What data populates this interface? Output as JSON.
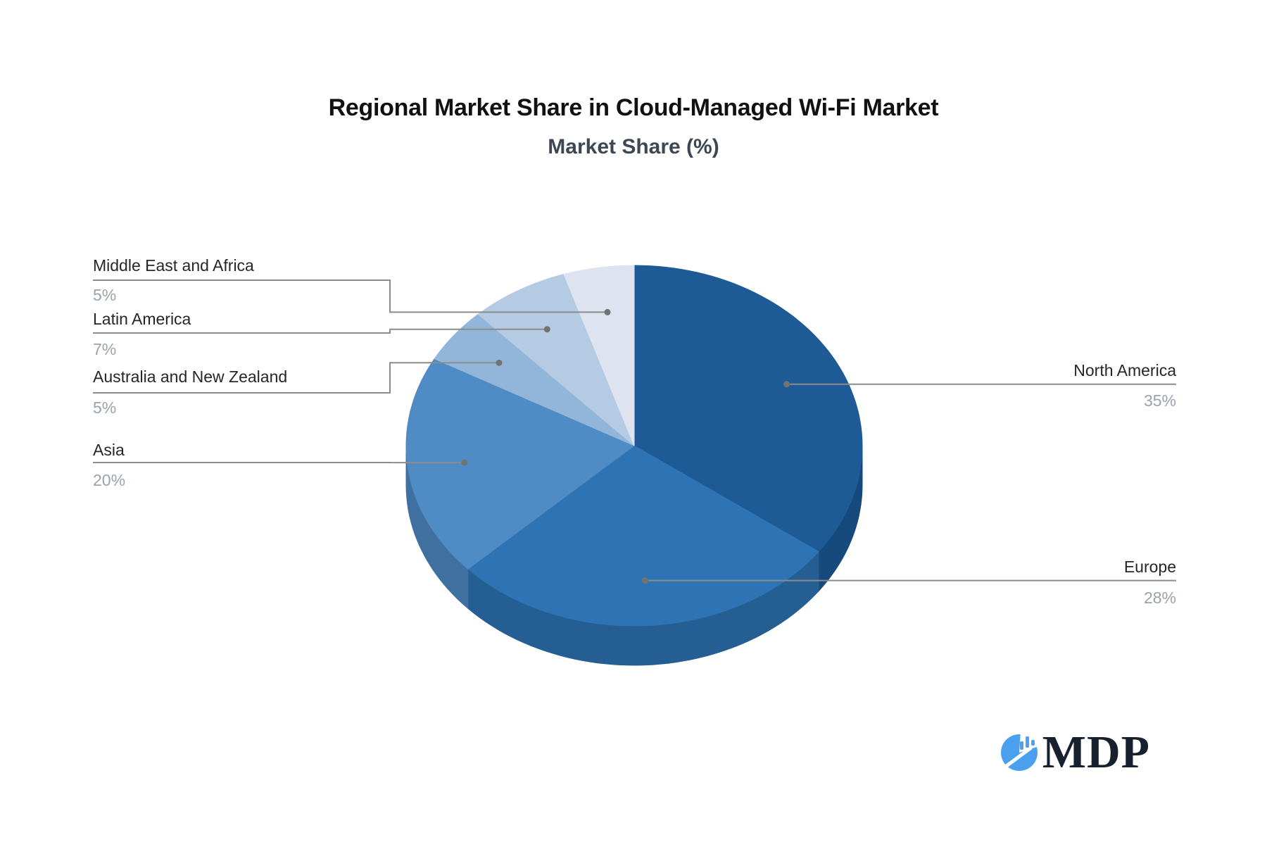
{
  "title": "Regional Market Share in Cloud-Managed Wi-Fi Market",
  "subtitle": "Market Share (%)",
  "chart_data": {
    "type": "pie",
    "title": "Regional Market Share in Cloud-Managed Wi-Fi Market",
    "subtitle": "Market Share (%)",
    "unit": "%",
    "style": "3d-pie",
    "start_angle_deg": 0,
    "direction": "clockwise",
    "legend_position": "callout-labels",
    "slices": [
      {
        "label": "North America",
        "value": 35,
        "display": "35%",
        "color": "#1E5A96",
        "depth_color": "#174A7C",
        "label_side": "right"
      },
      {
        "label": "Europe",
        "value": 28,
        "display": "28%",
        "color": "#2E74B4",
        "depth_color": "#255E93",
        "label_side": "right"
      },
      {
        "label": "Asia",
        "value": 20,
        "display": "20%",
        "color": "#4F8BC4",
        "depth_color": "#3F70A0",
        "label_side": "left"
      },
      {
        "label": "Australia and New Zealand",
        "value": 5,
        "display": "5%",
        "color": "#92B5DA",
        "depth_color": "#7A9DC2",
        "label_side": "left"
      },
      {
        "label": "Latin America",
        "value": 7,
        "display": "7%",
        "color": "#B5CAE3",
        "depth_color": "#9DB2CC",
        "label_side": "left"
      },
      {
        "label": "Middle East and Africa",
        "value": 5,
        "display": "5%",
        "color": "#DDE4EF",
        "depth_color": "#C5CCD8",
        "label_side": "left"
      }
    ]
  },
  "logo": {
    "text": "MDP",
    "icon": "pie-bars-logo-icon",
    "icon_color": "#4BA1EF",
    "text_color": "#16202e"
  },
  "colors": {
    "background": "#ffffff",
    "title": "#111111",
    "subtitle": "#3d4653",
    "label": "#262626",
    "value": "#9aa2ac",
    "connector_line": "#8c8c8c",
    "connector_dot": "#737373"
  }
}
